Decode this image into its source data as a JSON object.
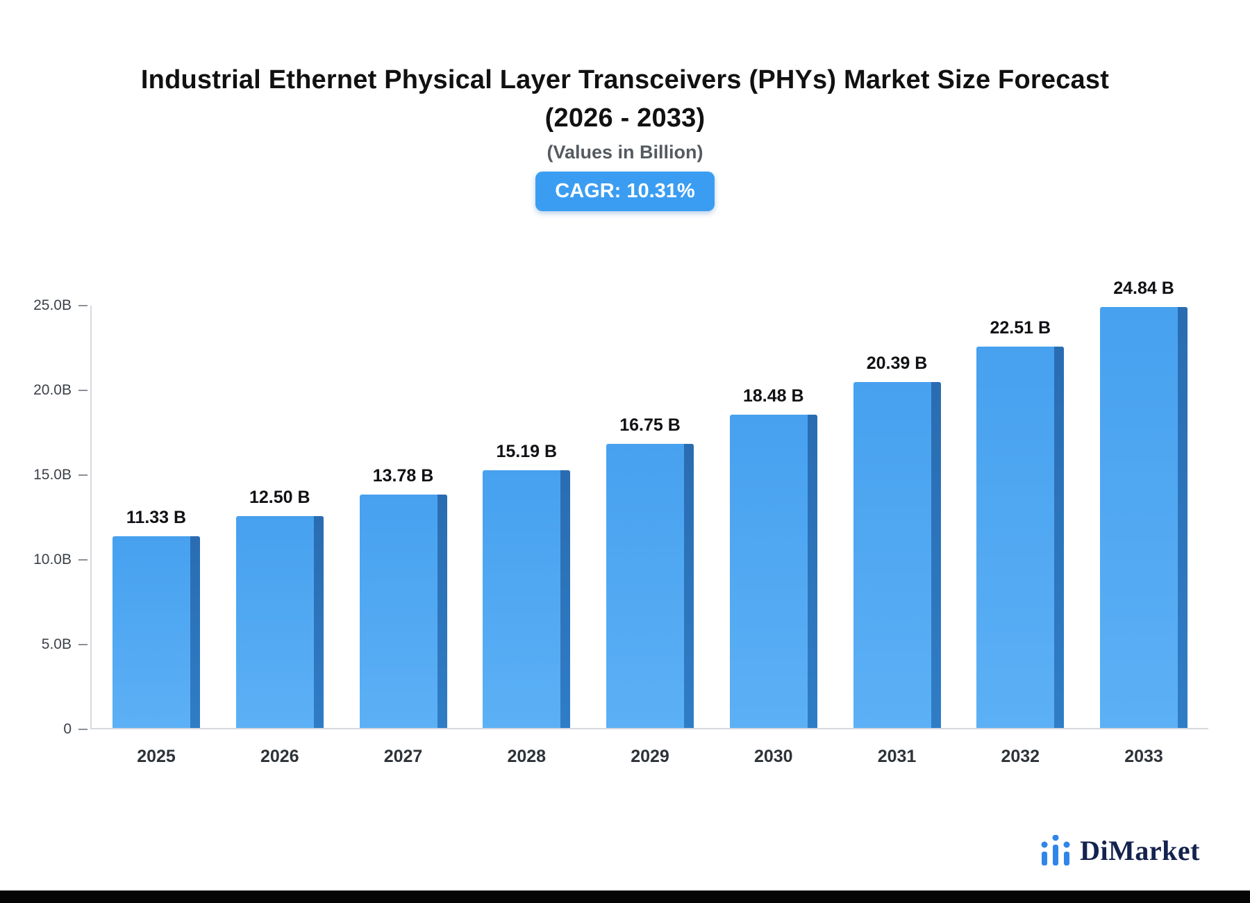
{
  "chart": {
    "title": "Industrial Ethernet Physical Layer Transceivers (PHYs) Market Size Forecast (2026 - 2033)",
    "subtitle": "(Values in Billion)",
    "cagr_label": "CAGR: 10.31%"
  },
  "chart_data": {
    "type": "bar",
    "title": "Industrial Ethernet Physical Layer Transceivers (PHYs) Market Size Forecast (2026 - 2033)",
    "subtitle": "(Values in Billion)",
    "cagr": "10.31%",
    "categories": [
      "2025",
      "2026",
      "2027",
      "2028",
      "2029",
      "2030",
      "2031",
      "2032",
      "2033"
    ],
    "values": [
      11.33,
      12.5,
      13.78,
      15.19,
      16.75,
      18.48,
      20.39,
      22.51,
      24.84
    ],
    "value_labels": [
      "11.33 B",
      "12.50 B",
      "13.78 B",
      "15.19 B",
      "16.75 B",
      "18.48 B",
      "20.39 B",
      "22.51 B",
      "24.84 B"
    ],
    "xlabel": "",
    "ylabel": "",
    "ylim": [
      0,
      25
    ],
    "yticks": {
      "labels": [
        "0",
        "5.0B",
        "10.0B",
        "15.0B",
        "20.0B",
        "25.0B"
      ],
      "values": [
        0,
        5,
        10,
        15,
        20,
        25
      ]
    },
    "grid": false,
    "legend": false,
    "bar_color": "#47A1EF",
    "bar_side_color": "#2B72BC"
  },
  "logo": {
    "text": "DiMarket",
    "icon_color": "#2F86E8"
  }
}
